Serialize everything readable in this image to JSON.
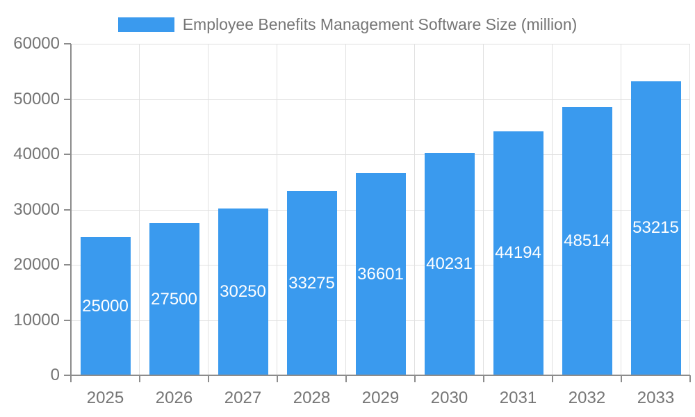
{
  "chart_data": {
    "type": "bar",
    "title": "Employee Benefits Management Software Size (million)",
    "categories": [
      "2025",
      "2026",
      "2027",
      "2028",
      "2029",
      "2030",
      "2031",
      "2032",
      "2033"
    ],
    "values": [
      25000,
      27500,
      30250,
      33275,
      36601,
      40231,
      44194,
      48514,
      53215
    ],
    "bar_value_labels": [
      "25000",
      "27500",
      "30250",
      "33275",
      "36601",
      "40231",
      "44194",
      "48514",
      "53215"
    ],
    "xlabel": "",
    "ylabel": "",
    "ylim": [
      0,
      60000
    ],
    "y_ticks": [
      0,
      10000,
      20000,
      30000,
      40000,
      50000,
      60000
    ],
    "grid": true,
    "legend_position": "top-center",
    "colors": {
      "bar": "#3A9AEE",
      "bar_label": "#FFFFFF",
      "axis_text": "#757575",
      "grid_line": "#E0E0E0",
      "axis_line": "#8C8C8C",
      "background": "#FFFFFF"
    }
  }
}
